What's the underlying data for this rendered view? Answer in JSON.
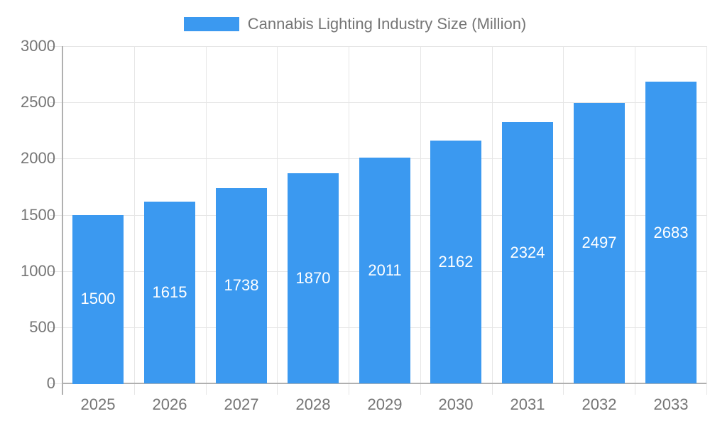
{
  "chart_data": {
    "type": "bar",
    "title": "Cannabis Lighting Industry Size (Million)",
    "categories": [
      "2025",
      "2026",
      "2027",
      "2028",
      "2029",
      "2030",
      "2031",
      "2032",
      "2033"
    ],
    "values": [
      1500,
      1615,
      1738,
      1870,
      2011,
      2162,
      2324,
      2497,
      2683
    ],
    "series_name": "Cannabis Lighting Industry Size (Million)",
    "xlabel": "",
    "ylabel": "",
    "ylim": [
      0,
      3000
    ],
    "ytick_step": 500,
    "ytick_labels": [
      "0",
      "500",
      "1000",
      "1500",
      "2000",
      "2500",
      "3000"
    ],
    "grid": true,
    "legend_position": "top",
    "value_labels": "centered-inside-bars"
  },
  "colors": {
    "bar": "#3B99F0",
    "axis": "#B0B0B0",
    "grid": "#E6E6E6",
    "text": "#757575",
    "value_label": "#FFFFFF"
  }
}
